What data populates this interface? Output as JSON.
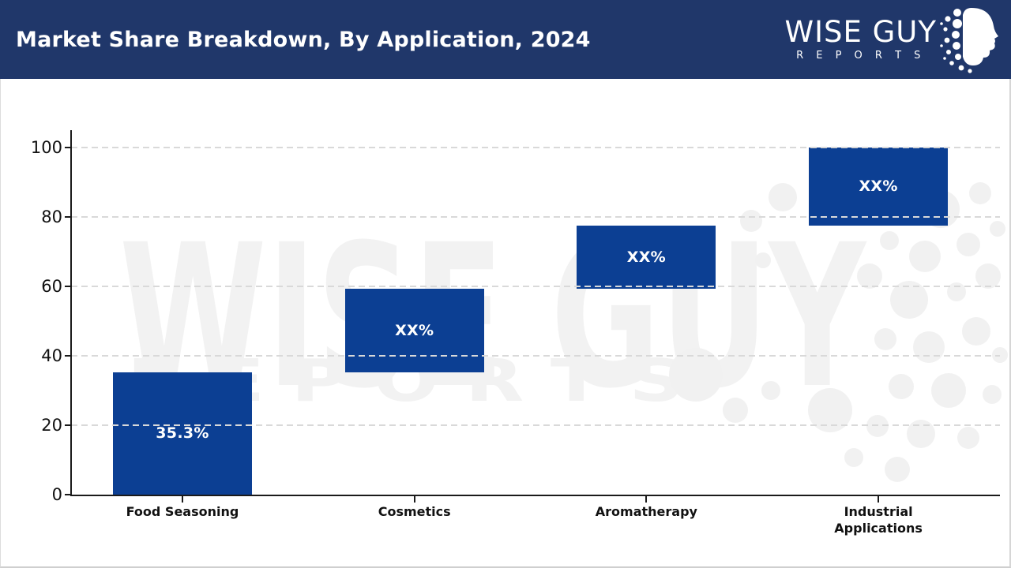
{
  "header": {
    "title": "Market Share Breakdown, By Application, 2024",
    "logo": {
      "line1": "WISE GUY",
      "line2": "R E P O R T S"
    }
  },
  "watermark": {
    "line1": "WISE GUY",
    "line2": "R E P O R T S"
  },
  "colors": {
    "header_bg": "#20376a",
    "bar": "#0c3f93",
    "grid": "#d9d9d9",
    "axis": "#1a1a1a",
    "bar_label_text": "#ffffff",
    "watermark": "#f2f2f2"
  },
  "chart_data": {
    "type": "bar",
    "subtype": "waterfall",
    "title": "Market Share Breakdown, By Application, 2024",
    "categories": [
      "Food Seasoning",
      "Cosmetics",
      "Aromatherapy",
      "Industrial\nApplications"
    ],
    "segments": [
      {
        "category": "Food Seasoning",
        "start": 0,
        "end": 35.3,
        "label": "35.3%"
      },
      {
        "category": "Cosmetics",
        "start": 35.3,
        "end": 59.3,
        "label": "XX%"
      },
      {
        "category": "Aromatherapy",
        "start": 59.3,
        "end": 77.6,
        "label": "XX%"
      },
      {
        "category": "Industrial Applications",
        "start": 77.6,
        "end": 100,
        "label": "XX%"
      }
    ],
    "yticks": [
      0,
      20,
      40,
      60,
      80,
      100
    ],
    "ylim": [
      0,
      105
    ],
    "xlabel": "",
    "ylabel": "",
    "grid": "dashed-horizontal",
    "legend": "none"
  }
}
